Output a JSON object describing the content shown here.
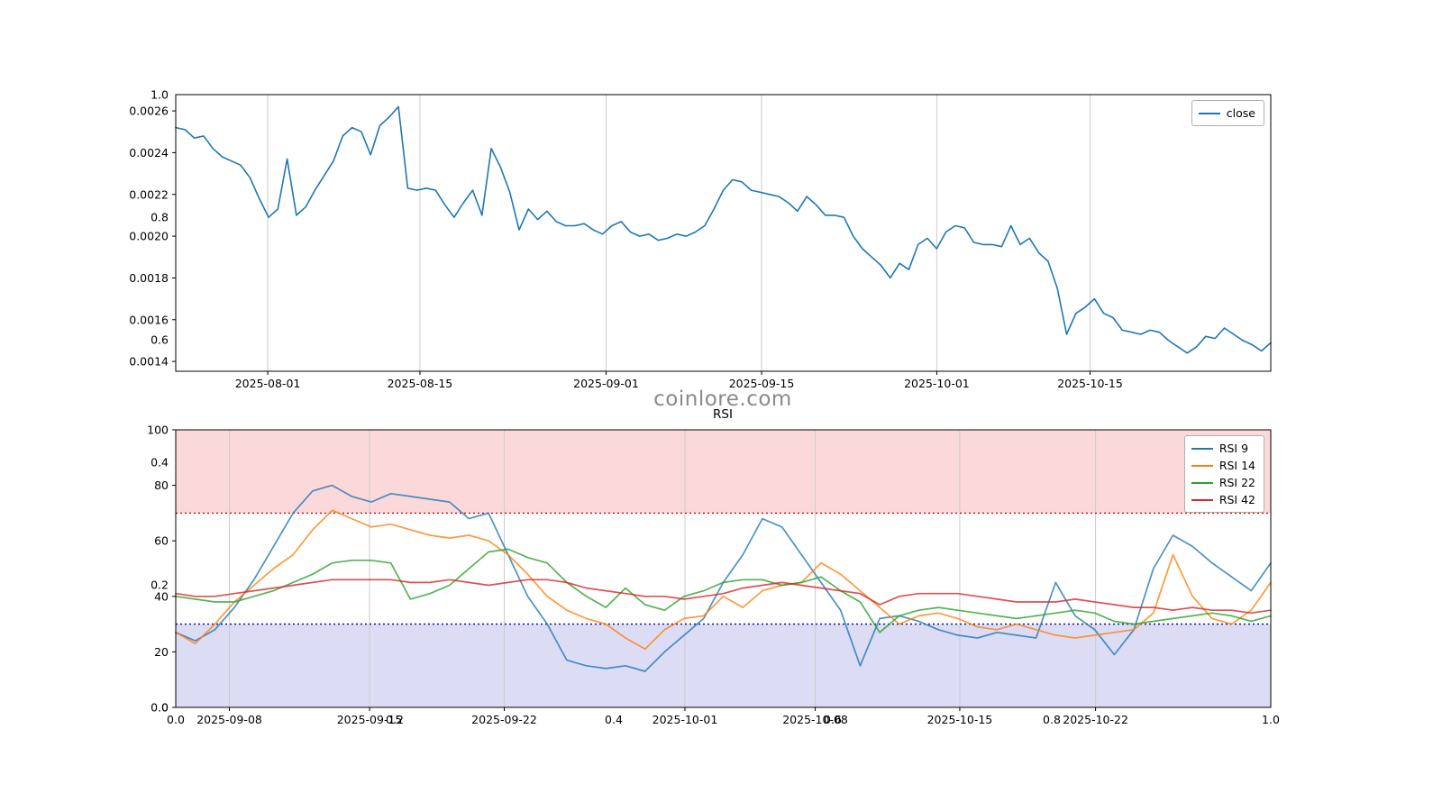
{
  "watermark": "coinlore.com",
  "rsi_title": "RSI",
  "colors": {
    "background": "#ffffff",
    "grid": "#cccccc",
    "spine": "#000000",
    "watermark": "#8a8a8a"
  },
  "figure_axis": {
    "y_ticks": [
      {
        "label": "1.0",
        "pos": 0.0
      },
      {
        "label": "0.8",
        "pos": 0.2
      },
      {
        "label": "0.6",
        "pos": 0.4
      },
      {
        "label": "0.4",
        "pos": 0.6
      },
      {
        "label": "0.2",
        "pos": 0.8
      },
      {
        "label": "0.0",
        "pos": 1.0
      }
    ],
    "x_ticks": [
      {
        "label": "0.0",
        "pos": 0.0
      },
      {
        "label": "0.2",
        "pos": 0.2
      },
      {
        "label": "0.4",
        "pos": 0.4
      },
      {
        "label": "0.6",
        "pos": 0.6
      },
      {
        "label": "0.8",
        "pos": 0.8
      },
      {
        "label": "1.0",
        "pos": 1.0
      }
    ]
  },
  "chart_data": [
    {
      "type": "line",
      "name": "price",
      "title": "",
      "xlabel": "",
      "ylabel": "",
      "grid": true,
      "legend_position": "upper right",
      "ylim": [
        0.001353,
        0.002678
      ],
      "x_ticks": [
        {
          "label": "2025-08-01",
          "pos": 0.084
        },
        {
          "label": "2025-08-15",
          "pos": 0.223
        },
        {
          "label": "2025-09-01",
          "pos": 0.393
        },
        {
          "label": "2025-09-15",
          "pos": 0.535
        },
        {
          "label": "2025-10-01",
          "pos": 0.695
        },
        {
          "label": "2025-10-15",
          "pos": 0.835
        }
      ],
      "y_ticks": [
        {
          "label": "0.0026",
          "value": 0.0026
        },
        {
          "label": "0.0024",
          "value": 0.0024
        },
        {
          "label": "0.0022",
          "value": 0.0022
        },
        {
          "label": "0.0020",
          "value": 0.002
        },
        {
          "label": "0.0018",
          "value": 0.0018
        },
        {
          "label": "0.0016",
          "value": 0.0016
        },
        {
          "label": "0.0014",
          "value": 0.0014
        }
      ],
      "legend_entries": [
        {
          "label": "close",
          "color": "#1f77b4"
        }
      ],
      "series": [
        {
          "name": "close",
          "color": "#1f77b4",
          "width": 1.6,
          "opacity": 1,
          "values": [
            0.00252,
            0.00251,
            0.00247,
            0.00248,
            0.00242,
            0.00238,
            0.00236,
            0.00234,
            0.00228,
            0.00218,
            0.00209,
            0.00213,
            0.00237,
            0.0021,
            0.00214,
            0.00222,
            0.00229,
            0.00236,
            0.00248,
            0.00252,
            0.0025,
            0.00239,
            0.00253,
            0.00257,
            0.00262,
            0.00223,
            0.00222,
            0.00223,
            0.00222,
            0.00215,
            0.00209,
            0.00216,
            0.00222,
            0.0021,
            0.00242,
            0.00233,
            0.00221,
            0.00203,
            0.00213,
            0.00208,
            0.00212,
            0.00207,
            0.00205,
            0.00205,
            0.00206,
            0.00203,
            0.00201,
            0.00205,
            0.00207,
            0.00202,
            0.002,
            0.00201,
            0.00198,
            0.00199,
            0.00201,
            0.002,
            0.00202,
            0.00205,
            0.00213,
            0.00222,
            0.00227,
            0.00226,
            0.00222,
            0.00221,
            0.0022,
            0.00219,
            0.00216,
            0.00212,
            0.00219,
            0.00215,
            0.0021,
            0.0021,
            0.00209,
            0.002,
            0.00194,
            0.0019,
            0.00186,
            0.0018,
            0.00187,
            0.00184,
            0.00196,
            0.00199,
            0.00194,
            0.00202,
            0.00205,
            0.00204,
            0.00197,
            0.00196,
            0.00196,
            0.00195,
            0.00205,
            0.00196,
            0.00199,
            0.00192,
            0.00188,
            0.00175,
            0.00153,
            0.00163,
            0.00166,
            0.0017,
            0.00163,
            0.00161,
            0.00155,
            0.00154,
            0.00153,
            0.00155,
            0.00154,
            0.0015,
            0.00147,
            0.00144,
            0.00147,
            0.00152,
            0.00151,
            0.00156,
            0.00153,
            0.0015,
            0.00148,
            0.00145,
            0.00149
          ]
        }
      ]
    },
    {
      "type": "line",
      "name": "rsi",
      "title": "RSI",
      "xlabel": "",
      "ylabel": "",
      "grid": true,
      "legend_position": "upper right",
      "ylim": [
        0,
        100
      ],
      "x_ticks": [
        {
          "label": "2025-09-08",
          "pos": 0.049
        },
        {
          "label": "2025-09-15",
          "pos": 0.177
        },
        {
          "label": "2025-09-22",
          "pos": 0.3
        },
        {
          "label": "2025-10-01",
          "pos": 0.465
        },
        {
          "label": "2025-10-08",
          "pos": 0.584
        },
        {
          "label": "2025-10-15",
          "pos": 0.716
        },
        {
          "label": "2025-10-22",
          "pos": 0.84
        }
      ],
      "y_ticks": [
        {
          "label": "100",
          "value": 100
        },
        {
          "label": "80",
          "value": 80
        },
        {
          "label": "60",
          "value": 60
        },
        {
          "label": "40",
          "value": 40
        },
        {
          "label": "20",
          "value": 20
        },
        {
          "label": "0",
          "value": 0
        }
      ],
      "bands": [
        {
          "name": "overbought",
          "from": 70,
          "to": 100,
          "color": "#fbd9db"
        },
        {
          "name": "oversold",
          "from": 0,
          "to": 30,
          "color": "#dcdcf5"
        }
      ],
      "thresholds": [
        {
          "value": 70,
          "color": "#d40000",
          "style": "dotted"
        },
        {
          "value": 30,
          "color": "#00008b",
          "style": "dotted"
        }
      ],
      "legend_entries": [
        {
          "label": "RSI 9",
          "color": "#1f77b4"
        },
        {
          "label": "RSI 14",
          "color": "#ff7f0e"
        },
        {
          "label": "RSI 22",
          "color": "#2ca02c"
        },
        {
          "label": "RSI 42",
          "color": "#d62728"
        }
      ],
      "series": [
        {
          "name": "RSI 9",
          "color": "#1f77b4",
          "width": 1.7,
          "opacity": 0.8,
          "values": [
            27,
            24,
            28,
            36,
            46,
            58,
            70,
            78,
            80,
            76,
            74,
            77,
            76,
            75,
            74,
            68,
            70,
            55,
            40,
            30,
            17,
            15,
            14,
            15,
            13,
            20,
            26,
            32,
            45,
            55,
            68,
            65,
            55,
            45,
            35,
            15,
            32,
            33,
            31,
            28,
            26,
            25,
            27,
            26,
            25,
            45,
            33,
            28,
            19,
            28,
            50,
            62,
            58,
            52,
            47,
            42,
            52
          ]
        },
        {
          "name": "RSI 14",
          "color": "#ff7f0e",
          "width": 1.7,
          "opacity": 0.8,
          "values": [
            27,
            23,
            30,
            38,
            44,
            50,
            55,
            64,
            71,
            68,
            65,
            66,
            64,
            62,
            61,
            62,
            60,
            55,
            48,
            40,
            35,
            32,
            30,
            25,
            21,
            28,
            32,
            33,
            40,
            36,
            42,
            44,
            45,
            52,
            48,
            42,
            36,
            30,
            33,
            34,
            32,
            29,
            28,
            30,
            28,
            26,
            25,
            26,
            27,
            28,
            34,
            55,
            40,
            32,
            30,
            35,
            45
          ]
        },
        {
          "name": "RSI 22",
          "color": "#2ca02c",
          "width": 1.7,
          "opacity": 0.8,
          "values": [
            40,
            39,
            38,
            38,
            40,
            42,
            45,
            48,
            52,
            53,
            53,
            52,
            39,
            41,
            44,
            50,
            56,
            57,
            54,
            52,
            45,
            40,
            36,
            43,
            37,
            35,
            40,
            42,
            45,
            46,
            46,
            44,
            45,
            47,
            42,
            38,
            27,
            33,
            35,
            36,
            35,
            34,
            33,
            32,
            33,
            34,
            35,
            34,
            31,
            30,
            31,
            32,
            33,
            34,
            33,
            31,
            33
          ]
        },
        {
          "name": "RSI 42",
          "color": "#d62728",
          "width": 1.7,
          "opacity": 0.8,
          "values": [
            41,
            40,
            40,
            41,
            42,
            43,
            44,
            45,
            46,
            46,
            46,
            46,
            45,
            45,
            46,
            45,
            44,
            45,
            46,
            46,
            45,
            43,
            42,
            41,
            40,
            40,
            39,
            40,
            41,
            43,
            44,
            45,
            44,
            43,
            42,
            41,
            37,
            40,
            41,
            41,
            41,
            40,
            39,
            38,
            38,
            38,
            39,
            38,
            37,
            36,
            36,
            35,
            36,
            35,
            35,
            34,
            35
          ]
        }
      ]
    }
  ]
}
